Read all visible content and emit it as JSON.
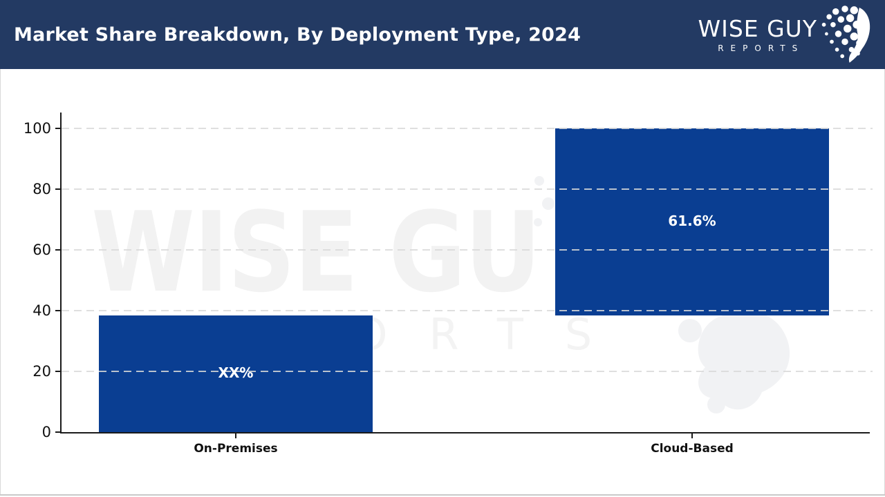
{
  "header": {
    "title": "Market Share Breakdown, By Deployment Type, 2024",
    "bg_color": "#233a63",
    "logo_line1": "WISE GUY",
    "logo_line2": "REPORTS"
  },
  "watermark": {
    "line1": "WISE GU",
    "line2": "REPORTS"
  },
  "chart_data": {
    "type": "bar",
    "orientation": "vertical",
    "title": "Market Share Breakdown, By Deployment Type, 2024",
    "categories": [
      "On-Premises",
      "Cloud-Based"
    ],
    "bars": [
      {
        "category": "On-Premises",
        "base": 0,
        "top": 38.4,
        "height": 38.4,
        "label": "XX%"
      },
      {
        "category": "Cloud-Based",
        "base": 38.4,
        "top": 100,
        "height": 61.6,
        "label": "61.6%"
      }
    ],
    "bar_color": "#0a3e92",
    "bar_label_color": "#ffffff",
    "xlabel": "",
    "ylabel": "",
    "ylim": [
      0,
      100
    ],
    "yticks": [
      0,
      20,
      40,
      60,
      80,
      100
    ],
    "grid": {
      "axis": "y",
      "style": "dashed",
      "color": "#d9d9d9",
      "drawn_over_bars": true
    },
    "axis_color": "#1a1a1a",
    "legend": null
  }
}
